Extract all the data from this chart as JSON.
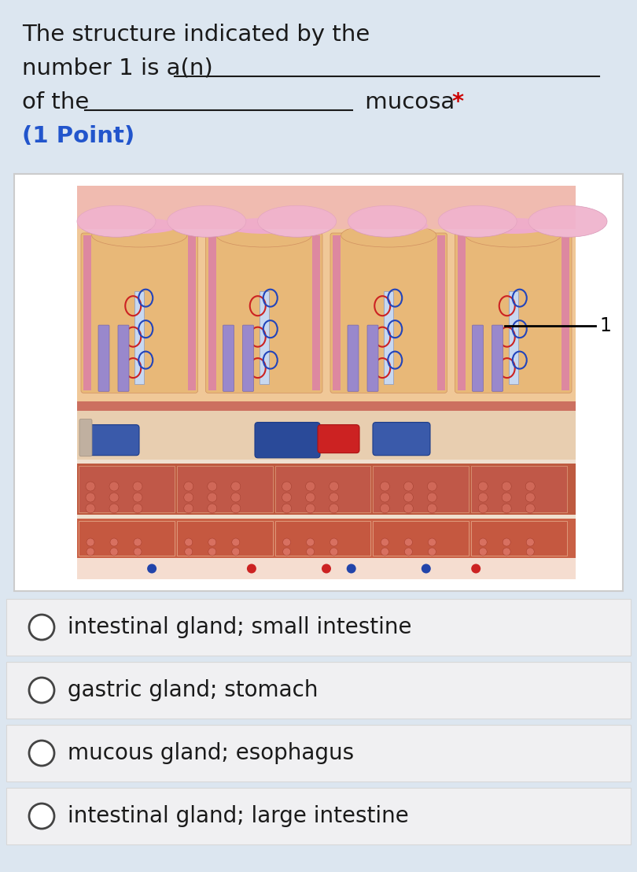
{
  "bg_color": "#dce6f0",
  "question_line1": "The structure indicated by the",
  "question_line2_pre": "number 1 is a(n) ",
  "question_line3_pre": "of the ",
  "question_line3_mid": " mucosa ",
  "asterisk": "*",
  "point_text": "(1 Point)",
  "options": [
    "intestinal gland; small intestine",
    "gastric gland; stomach",
    "mucous gland; esophagus",
    "intestinal gland; large intestine"
  ],
  "text_color": "#1a1a1a",
  "point_color": "#2255cc",
  "asterisk_color": "#cc0000",
  "font_size_question": 21,
  "font_size_options": 20,
  "font_size_point": 21,
  "img_box_color": "#ffffff",
  "img_box_border": "#cccccc",
  "option_bg": "#f0f0f2",
  "option_border": "#d8d8d8",
  "radio_color": "#444444"
}
